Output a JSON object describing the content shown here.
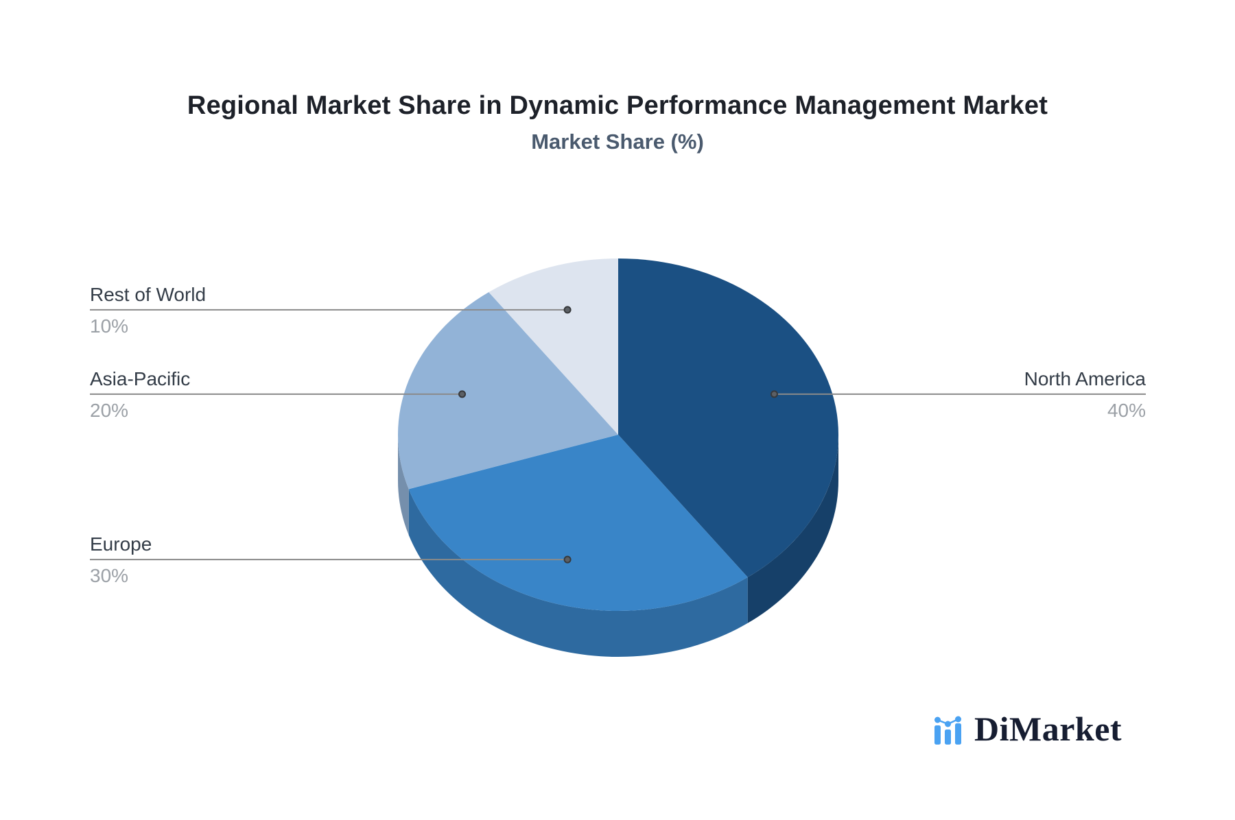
{
  "page": {
    "background": "#ffffff"
  },
  "chart_data": {
    "type": "pie",
    "title": "Regional Market Share in Dynamic Performance Management Market",
    "subtitle": "Market Share (%)",
    "unit": "%",
    "effect": "3d",
    "start_angle_deg": 0,
    "direction": "clockwise",
    "slices": [
      {
        "label": "North America",
        "value": 40,
        "display": "40%",
        "color": "#1B5083"
      },
      {
        "label": "Europe",
        "value": 30,
        "display": "30%",
        "color": "#3985C8"
      },
      {
        "label": "Asia-Pacific",
        "value": 20,
        "display": "20%",
        "color": "#92B3D7"
      },
      {
        "label": "Rest of World",
        "value": 10,
        "display": "10%",
        "color": "#DDE4EF"
      }
    ],
    "legend_position": "leader-lines",
    "label_text_color": "#333C47",
    "value_text_color": "#9BA0A6",
    "leader_line_color": "#8A8A8A"
  },
  "branding": {
    "name": "DiMarket",
    "icon": "bar-chart-logo-icon",
    "icon_color": "#4AA2F2",
    "text_color": "#161D31"
  }
}
